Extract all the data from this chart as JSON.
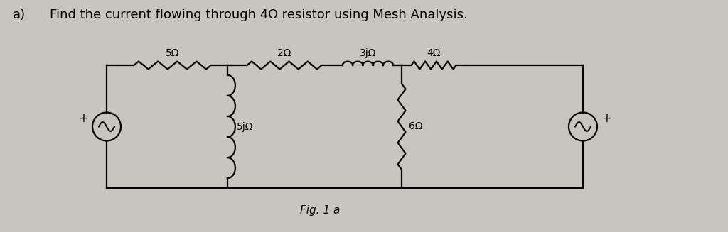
{
  "title_a": "a)",
  "title_text": "Find the current flowing through 4Ω resistor using Mesh Analysis.",
  "fig_label": "Fig. 1 a",
  "bg_color": "#c8c4c0",
  "lw": 1.6,
  "color": "black",
  "xL": 1.5,
  "xB1": 3.2,
  "xB2": 5.05,
  "xB3": 6.6,
  "xR": 8.2,
  "yTop": 2.35,
  "yBot": 0.62,
  "src_r": 0.2,
  "label_5R": "5Ω",
  "label_2R": "2Ω",
  "label_3L": "3jΩ",
  "label_4R": "4Ω",
  "label_5L": "5jΩ",
  "label_6R": "6Ω"
}
